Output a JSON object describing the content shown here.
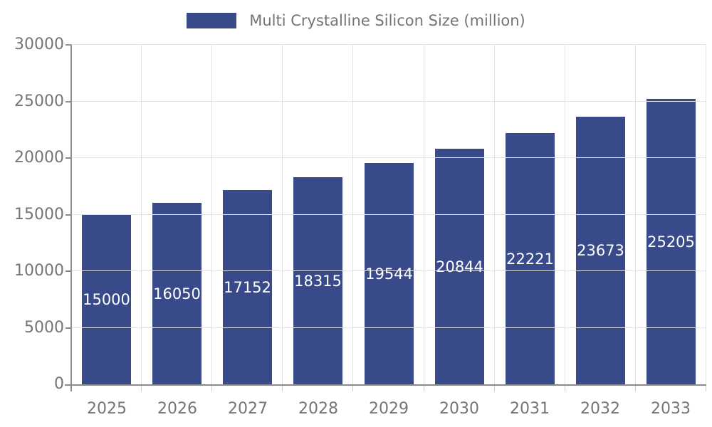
{
  "legend": {
    "series_label": "Multi Crystalline Silicon Size (million)"
  },
  "chart_data": {
    "type": "bar",
    "title": "",
    "xlabel": "",
    "ylabel": "",
    "categories": [
      "2025",
      "2026",
      "2027",
      "2028",
      "2029",
      "2030",
      "2031",
      "2032",
      "2033"
    ],
    "series": [
      {
        "name": "Multi Crystalline Silicon Size (million)",
        "values": [
          15000,
          16050,
          17152,
          18315,
          19544,
          20844,
          22221,
          23673,
          25205
        ]
      }
    ],
    "ylim": [
      0,
      30000
    ],
    "yticks": [
      0,
      5000,
      10000,
      15000,
      20000,
      25000,
      30000
    ],
    "grid": true,
    "legend_position": "top",
    "bar_value_labels": "inside-center",
    "colors": {
      "bar": "#394A8A",
      "bar_label": "#FFFFFF",
      "grid": "#E3E3E3",
      "axis_line": "#8C8C8C",
      "tick_text": "#757575",
      "legend_text": "#757575",
      "background": "#FFFFFF"
    }
  }
}
